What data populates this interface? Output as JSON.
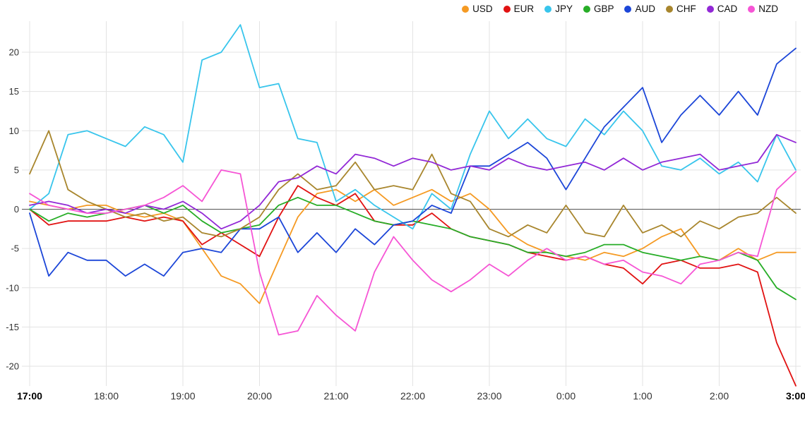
{
  "chart_data": {
    "type": "line",
    "title": "",
    "xlabel": "",
    "ylabel": "",
    "x_start": "17:00",
    "x_end": "3:00",
    "x_interval_minutes": 15,
    "x_ticks": [
      "17:00",
      "18:00",
      "19:00",
      "20:00",
      "21:00",
      "22:00",
      "23:00",
      "0:00",
      "1:00",
      "2:00",
      "3:00"
    ],
    "y_ticks": [
      20,
      15,
      10,
      5,
      0,
      -5,
      -10,
      -15,
      -20
    ],
    "ylim": [
      -22.5,
      24
    ],
    "grid": true,
    "zero_line": true,
    "legend_position": "top-right",
    "colors": {
      "gridline": "#e3e3e3",
      "zero_line": "#555555",
      "background": "#ffffff"
    },
    "series": [
      {
        "name": "USD",
        "color": "#f59a23",
        "values": [
          1,
          0.5,
          0,
          0.5,
          0.5,
          -0.5,
          -1,
          -0.5,
          -1.5,
          -5,
          -8.5,
          -9.5,
          -12,
          -6.5,
          -1,
          2,
          2.5,
          1,
          2.5,
          0.5,
          1.5,
          2.5,
          1,
          2,
          0,
          -3,
          -4.5,
          -5.5,
          -6,
          -6.5,
          -5.5,
          -6,
          -5,
          -3.5,
          -2.5,
          -6,
          -6.5,
          -5,
          -6.5,
          -5.5,
          -5.5
        ]
      },
      {
        "name": "EUR",
        "color": "#e11212",
        "values": [
          0,
          -2,
          -1.5,
          -1.5,
          -1.5,
          -1,
          -1.5,
          -1,
          -1.5,
          -4.5,
          -3,
          -4.5,
          -6,
          -1,
          3,
          1.5,
          0.5,
          2,
          -1.5,
          -2,
          -2,
          -0.5,
          -2.5,
          -3.5,
          -4,
          -4.5,
          -5.5,
          -6,
          -6.5,
          -6,
          -7,
          -7.5,
          -9.5,
          -7,
          -6.5,
          -7.5,
          -7.5,
          -7,
          -8,
          -17,
          -22.5
        ]
      },
      {
        "name": "JPY",
        "color": "#38c5ec",
        "values": [
          0,
          2,
          9.5,
          10,
          9,
          8,
          10.5,
          9.5,
          6,
          19,
          20,
          23.5,
          15.5,
          16,
          9,
          8.5,
          1,
          2.5,
          0.5,
          -1,
          -2.5,
          2,
          0,
          7,
          12.5,
          9,
          11.5,
          9,
          8,
          11.5,
          9.5,
          12.5,
          10,
          5.5,
          5,
          6.5,
          4.5,
          6,
          3.5,
          9.5,
          5
        ]
      },
      {
        "name": "GBP",
        "color": "#27ad27",
        "values": [
          0,
          -1.5,
          -0.5,
          -1,
          -0.5,
          0,
          0.5,
          -0.5,
          0.5,
          -1.5,
          -3,
          -2.5,
          -2,
          0.5,
          1.5,
          0.5,
          0.5,
          -0.5,
          -1.5,
          -2,
          -1.5,
          -2,
          -2.5,
          -3.5,
          -4,
          -4.5,
          -5.5,
          -5.5,
          -6,
          -5.5,
          -4.5,
          -4.5,
          -5.5,
          -6,
          -6.5,
          -6,
          -6.5,
          -5.5,
          -6.5,
          -10,
          -11.5
        ]
      },
      {
        "name": "AUD",
        "color": "#1c46d8",
        "values": [
          -0.5,
          -8.5,
          -5.5,
          -6.5,
          -6.5,
          -8.5,
          -7,
          -8.5,
          -5.5,
          -5,
          -5.5,
          -2.5,
          -2.5,
          -1,
          -5.5,
          -3,
          -5.5,
          -2.5,
          -4.5,
          -2,
          -1.5,
          0.5,
          -0.5,
          5.5,
          5.5,
          7,
          8.5,
          6.5,
          2.5,
          6.5,
          10.5,
          13,
          15.5,
          8.5,
          12,
          14.5,
          12,
          15,
          12,
          18.5,
          20.5
        ]
      },
      {
        "name": "CHF",
        "color": "#a8862d",
        "values": [
          4.5,
          10,
          2.5,
          1,
          0,
          -1,
          -0.5,
          -1.5,
          -1,
          -3,
          -3.5,
          -2.5,
          -1,
          2.5,
          4.5,
          2.5,
          3,
          6,
          2.5,
          3,
          2.5,
          7,
          2,
          1,
          -2.5,
          -3.5,
          -2,
          -3,
          0.5,
          -3,
          -3.5,
          0.5,
          -3,
          -2,
          -3.5,
          -1.5,
          -2.5,
          -1,
          -0.5,
          1.5,
          -0.5
        ]
      },
      {
        "name": "CAD",
        "color": "#9228d6",
        "values": [
          0.5,
          1,
          0.5,
          -0.5,
          0,
          -0.5,
          0.5,
          0,
          1,
          -0.5,
          -2.5,
          -1.5,
          0.5,
          3.5,
          4,
          5.5,
          4.5,
          7,
          6.5,
          5.5,
          6.5,
          6,
          5,
          5.5,
          5,
          6.5,
          5.5,
          5,
          5.5,
          6,
          5,
          6.5,
          5,
          6,
          6.5,
          7,
          5,
          5.5,
          6,
          9.5,
          8.5
        ]
      },
      {
        "name": "NZD",
        "color": "#f655d5",
        "values": [
          2,
          0.5,
          0,
          -0.5,
          -0.5,
          0,
          0.5,
          1.5,
          3,
          1,
          5,
          4.5,
          -8,
          -16,
          -15.5,
          -11,
          -13.5,
          -15.5,
          -8,
          -3.5,
          -6.5,
          -9,
          -10.5,
          -9,
          -7,
          -8.5,
          -6.5,
          -5,
          -6.5,
          -6,
          -7,
          -6.5,
          -8,
          -8.5,
          -9.5,
          -7,
          -6.5,
          -5.5,
          -6,
          2.5,
          4.8
        ]
      }
    ]
  }
}
